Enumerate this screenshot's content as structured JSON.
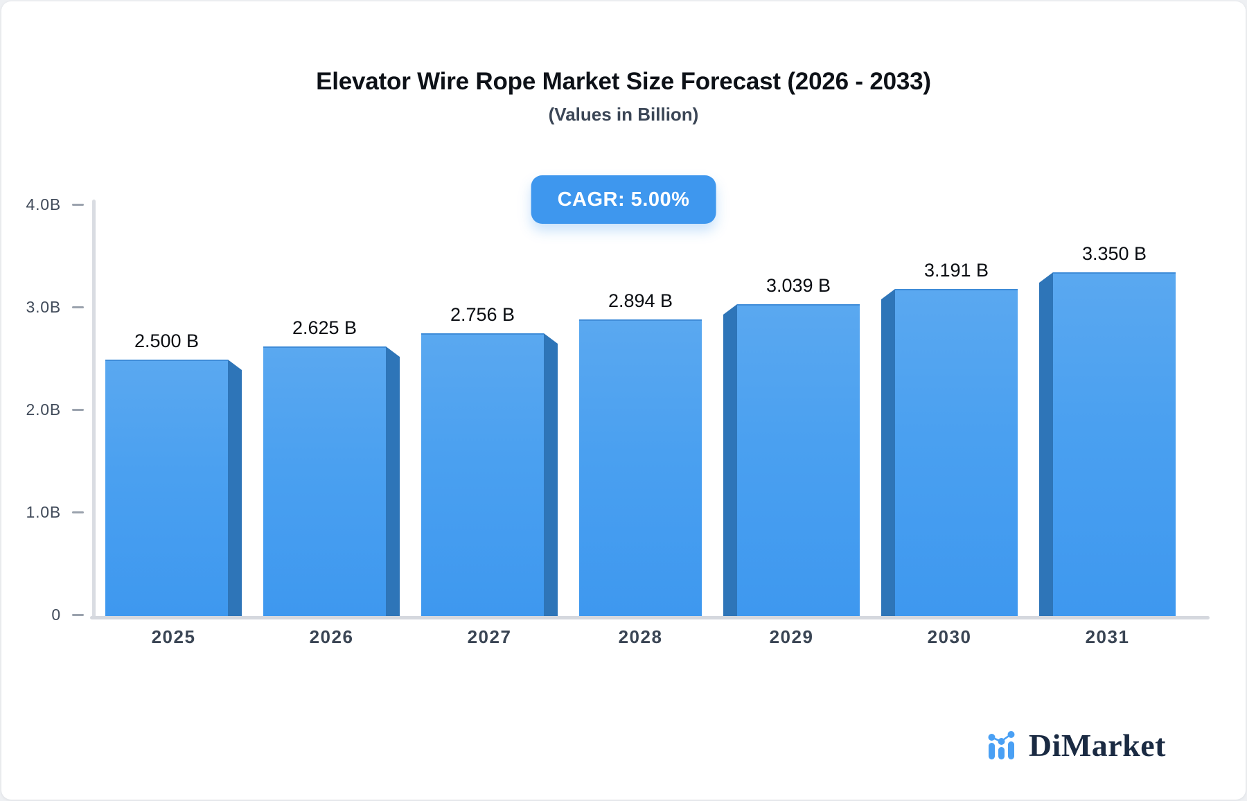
{
  "header": {
    "title": "Elevator Wire Rope Market Size Forecast (2026 - 2033)",
    "subtitle": "(Values in Billion)",
    "cagr_label": "CAGR: 5.00%"
  },
  "chart_data": {
    "type": "bar",
    "title": "Elevator Wire Rope Market Size Forecast (2026 - 2033)",
    "subtitle": "(Values in Billion)",
    "categories": [
      "2025",
      "2026",
      "2027",
      "2028",
      "2029",
      "2030",
      "2031"
    ],
    "values": [
      2.5,
      2.625,
      2.756,
      2.894,
      3.039,
      3.191,
      3.35
    ],
    "value_labels": [
      "2.500 B",
      "2.625 B",
      "2.756 B",
      "2.894 B",
      "3.039 B",
      "3.191 B",
      "3.350 B"
    ],
    "annotation": "CAGR: 5.00%",
    "ylim": [
      0,
      4
    ],
    "yticks": [
      {
        "value": 0,
        "label": "0"
      },
      {
        "value": 1,
        "label": "1.0B"
      },
      {
        "value": 2,
        "label": "2.0B"
      },
      {
        "value": 3,
        "label": "3.0B"
      },
      {
        "value": 4,
        "label": "4.0B"
      }
    ],
    "grid": "off",
    "legend": "none",
    "bar_style": "3d-bevel, side face toward chart center, flat on middle bar"
  },
  "colors": {
    "bar_face_top": "#5aa8f0",
    "bar_face_bottom": "#3e98ef",
    "bar_side": "#2e75b8",
    "badge_bg": "#3e97ee",
    "badge_text": "#ffffff",
    "axis_line": "#d9dce2",
    "tick_dash": "#9aa2ad",
    "axis_label": "#414b5a",
    "year_label": "#3a4554",
    "value_label": "#0a0d12",
    "title": "#0d1117",
    "subtitle": "#3b4656",
    "brand_text": "#1a2a42",
    "brand_blue": "#4aa0f4",
    "card_bg": "#ffffff",
    "page_bg": "#eef0f3"
  },
  "footer": {
    "brand": "DiMarket"
  }
}
